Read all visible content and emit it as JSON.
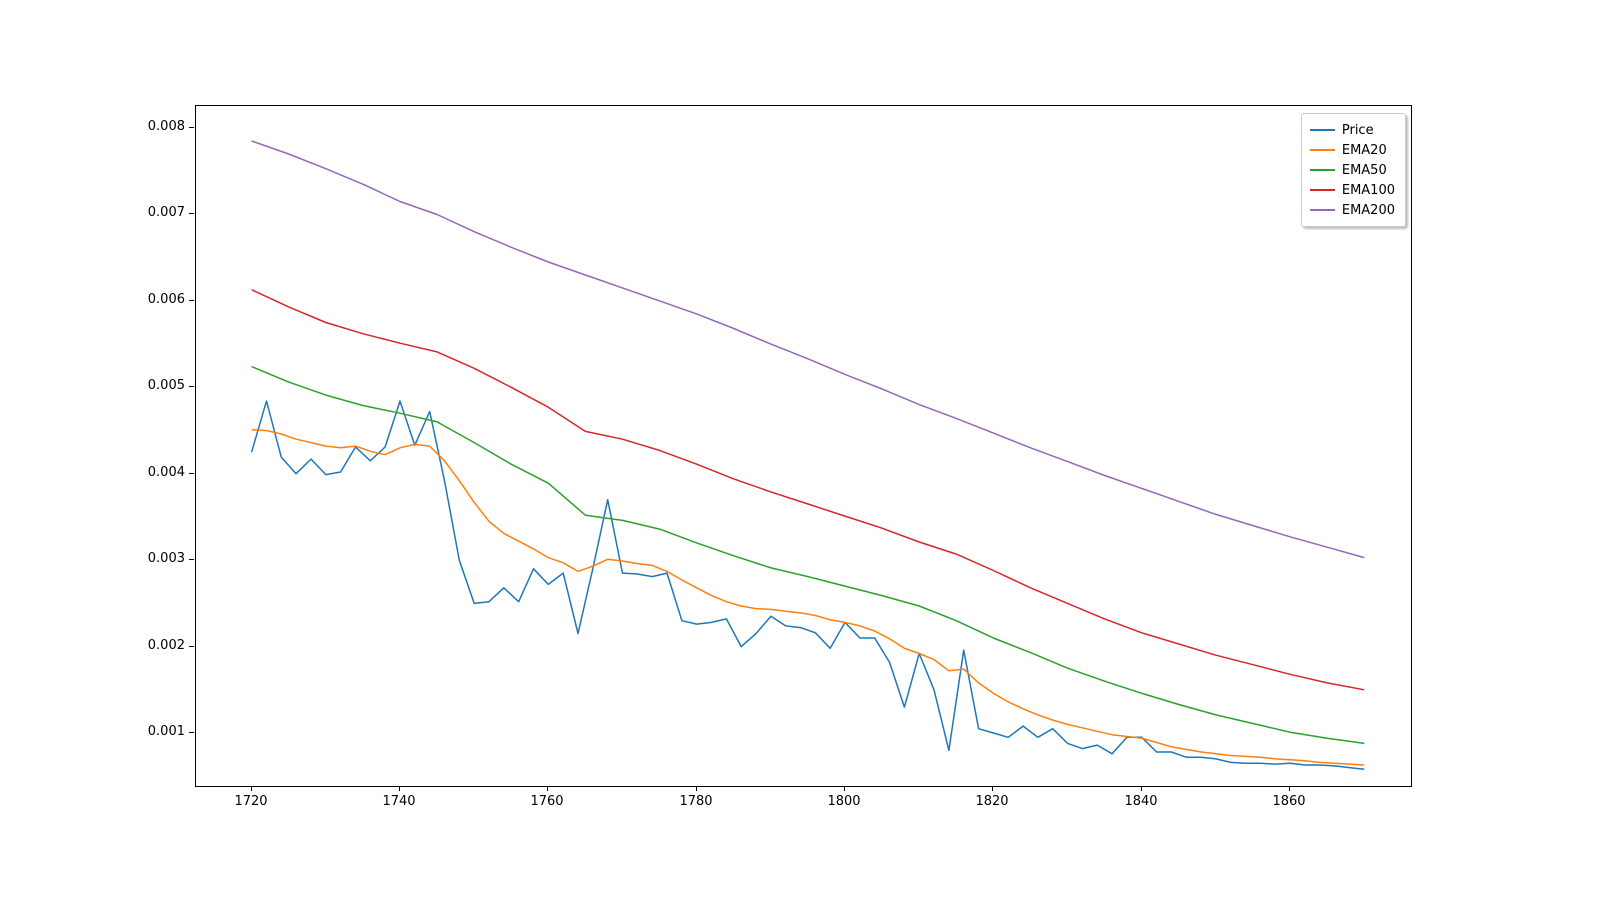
{
  "figure": {
    "background_color": "#ffffff",
    "axes_edge_color": "#000000",
    "legend_border_color": "#cccccc"
  },
  "chart_data": {
    "type": "line",
    "title": "",
    "xlabel": "",
    "ylabel": "",
    "grid": false,
    "legend_position": "upper right",
    "xlim": [
      1712.5,
      1876.3
    ],
    "ylim": [
      0.000387,
      0.008255
    ],
    "xticks": [
      1720,
      1740,
      1760,
      1780,
      1800,
      1820,
      1840,
      1860
    ],
    "yticks": [
      0.001,
      0.002,
      0.003,
      0.004,
      0.005,
      0.006,
      0.007,
      0.008
    ],
    "series": [
      {
        "name": "Price",
        "color": "#1f77b4",
        "x": [
          1720,
          1722,
          1724,
          1726,
          1728,
          1730,
          1732,
          1734,
          1736,
          1738,
          1740,
          1742,
          1744,
          1746,
          1748,
          1750,
          1752,
          1754,
          1756,
          1758,
          1760,
          1762,
          1764,
          1766,
          1768,
          1770,
          1772,
          1774,
          1776,
          1778,
          1780,
          1782,
          1784,
          1786,
          1788,
          1790,
          1792,
          1794,
          1796,
          1798,
          1800,
          1802,
          1804,
          1806,
          1808,
          1810,
          1812,
          1814,
          1816,
          1818,
          1820,
          1822,
          1824,
          1826,
          1828,
          1830,
          1832,
          1834,
          1836,
          1838,
          1840,
          1842,
          1844,
          1846,
          1848,
          1850,
          1852,
          1854,
          1856,
          1858,
          1860,
          1862,
          1864,
          1866,
          1868,
          1870
        ],
        "y": [
          0.00425,
          0.00484,
          0.00419,
          0.004,
          0.00417,
          0.00399,
          0.00402,
          0.00431,
          0.00415,
          0.00431,
          0.00484,
          0.00433,
          0.00472,
          0.00392,
          0.003,
          0.0025,
          0.00252,
          0.00268,
          0.00252,
          0.0029,
          0.00272,
          0.00285,
          0.00215,
          0.0029,
          0.0037,
          0.00285,
          0.00284,
          0.00281,
          0.00285,
          0.0023,
          0.00226,
          0.00228,
          0.00232,
          0.002,
          0.00215,
          0.00235,
          0.00224,
          0.00222,
          0.00216,
          0.00198,
          0.00228,
          0.0021,
          0.0021,
          0.00182,
          0.0013,
          0.00192,
          0.0015,
          0.0008,
          0.00196,
          0.00105,
          0.001,
          0.00095,
          0.00108,
          0.00095,
          0.00105,
          0.00088,
          0.00082,
          0.00086,
          0.00076,
          0.00095,
          0.00095,
          0.00078,
          0.00078,
          0.00072,
          0.00072,
          0.0007,
          0.00066,
          0.00065,
          0.00065,
          0.00064,
          0.00065,
          0.00063,
          0.00063,
          0.00062,
          0.0006,
          0.00058
        ]
      },
      {
        "name": "EMA20",
        "color": "#ff7f0e",
        "x": [
          1720,
          1722,
          1724,
          1726,
          1728,
          1730,
          1732,
          1734,
          1736,
          1738,
          1740,
          1742,
          1744,
          1746,
          1748,
          1750,
          1752,
          1754,
          1756,
          1758,
          1760,
          1762,
          1764,
          1766,
          1768,
          1770,
          1772,
          1774,
          1776,
          1778,
          1780,
          1782,
          1784,
          1786,
          1788,
          1790,
          1792,
          1794,
          1796,
          1798,
          1800,
          1802,
          1804,
          1806,
          1808,
          1810,
          1812,
          1814,
          1816,
          1818,
          1820,
          1822,
          1824,
          1826,
          1828,
          1830,
          1832,
          1834,
          1836,
          1838,
          1840,
          1842,
          1844,
          1846,
          1848,
          1850,
          1852,
          1854,
          1856,
          1858,
          1860,
          1862,
          1864,
          1866,
          1868,
          1870
        ],
        "y": [
          0.00451,
          0.0045,
          0.00446,
          0.0044,
          0.00436,
          0.00432,
          0.0043,
          0.00432,
          0.00426,
          0.00422,
          0.0043,
          0.00434,
          0.00432,
          0.00415,
          0.00392,
          0.00367,
          0.00345,
          0.00331,
          0.00322,
          0.00313,
          0.00303,
          0.00297,
          0.00287,
          0.00293,
          0.00301,
          0.00299,
          0.00296,
          0.00294,
          0.00287,
          0.00277,
          0.00268,
          0.00259,
          0.00252,
          0.00247,
          0.00244,
          0.00243,
          0.00241,
          0.00239,
          0.00236,
          0.00231,
          0.00228,
          0.00224,
          0.00218,
          0.00209,
          0.00198,
          0.00192,
          0.00185,
          0.00172,
          0.00174,
          0.00158,
          0.00146,
          0.00136,
          0.00128,
          0.00121,
          0.00115,
          0.0011,
          0.00106,
          0.00102,
          0.00098,
          0.00096,
          0.00094,
          0.00089,
          0.00084,
          0.00081,
          0.00078,
          0.00076,
          0.00074,
          0.00073,
          0.00072,
          0.0007,
          0.00069,
          0.00068,
          0.00066,
          0.00065,
          0.00064,
          0.00063
        ]
      },
      {
        "name": "EMA50",
        "color": "#2ca02c",
        "x": [
          1720,
          1725,
          1730,
          1735,
          1740,
          1745,
          1750,
          1755,
          1760,
          1765,
          1770,
          1775,
          1780,
          1785,
          1790,
          1795,
          1800,
          1805,
          1810,
          1815,
          1820,
          1825,
          1830,
          1835,
          1840,
          1845,
          1850,
          1855,
          1860,
          1865,
          1870
        ],
        "y": [
          0.00524,
          0.00506,
          0.00491,
          0.00479,
          0.0047,
          0.0046,
          0.00436,
          0.00411,
          0.00389,
          0.00352,
          0.00346,
          0.00336,
          0.0032,
          0.00305,
          0.00291,
          0.00281,
          0.0027,
          0.00259,
          0.00247,
          0.0023,
          0.0021,
          0.00193,
          0.00175,
          0.0016,
          0.00146,
          0.00133,
          0.00121,
          0.00111,
          0.00101,
          0.00094,
          0.00088
        ]
      },
      {
        "name": "EMA100",
        "color": "#d62728",
        "x": [
          1720,
          1725,
          1730,
          1735,
          1740,
          1745,
          1750,
          1755,
          1760,
          1765,
          1770,
          1775,
          1780,
          1785,
          1790,
          1795,
          1800,
          1805,
          1810,
          1815,
          1820,
          1825,
          1830,
          1835,
          1840,
          1845,
          1850,
          1855,
          1860,
          1865,
          1870
        ],
        "y": [
          0.00613,
          0.00593,
          0.00575,
          0.00562,
          0.00551,
          0.00541,
          0.00522,
          0.005,
          0.00477,
          0.00449,
          0.0044,
          0.00427,
          0.00411,
          0.00394,
          0.00379,
          0.00365,
          0.00351,
          0.00337,
          0.00321,
          0.00307,
          0.00288,
          0.00268,
          0.0025,
          0.00232,
          0.00216,
          0.00203,
          0.0019,
          0.00179,
          0.00168,
          0.00158,
          0.0015
        ]
      },
      {
        "name": "EMA200",
        "color": "#9467bd",
        "x": [
          1720,
          1725,
          1730,
          1735,
          1740,
          1745,
          1750,
          1755,
          1760,
          1765,
          1770,
          1775,
          1780,
          1785,
          1790,
          1795,
          1800,
          1805,
          1810,
          1815,
          1820,
          1825,
          1830,
          1835,
          1840,
          1845,
          1850,
          1855,
          1860,
          1865,
          1870
        ],
        "y": [
          0.00785,
          0.0077,
          0.00753,
          0.00735,
          0.00715,
          0.007,
          0.0068,
          0.00662,
          0.00645,
          0.0063,
          0.00615,
          0.006,
          0.00585,
          0.00568,
          0.0055,
          0.00533,
          0.00515,
          0.00498,
          0.0048,
          0.00464,
          0.00447,
          0.0043,
          0.00414,
          0.00398,
          0.00383,
          0.00368,
          0.00353,
          0.0034,
          0.00327,
          0.00315,
          0.00303
        ]
      }
    ]
  },
  "legend": {
    "entries": [
      "Price",
      "EMA20",
      "EMA50",
      "EMA100",
      "EMA200"
    ]
  }
}
